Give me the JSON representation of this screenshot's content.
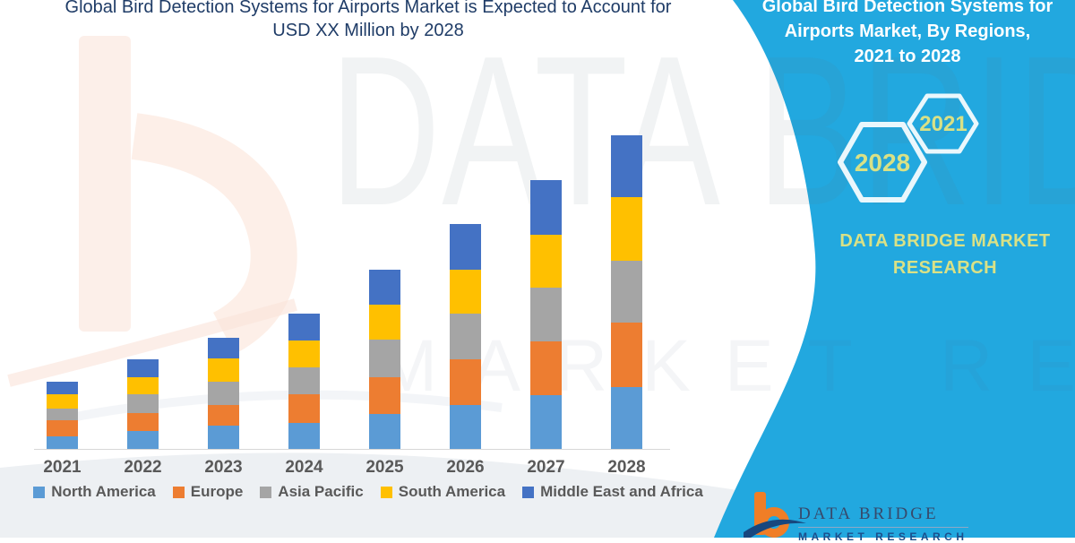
{
  "title": {
    "line1": "Global Bird Detection Systems for Airports Market is Expected to Account for",
    "line2": "USD XX Million by 2028"
  },
  "panel": {
    "heading_lines": [
      "Global Bird Detection Systems for",
      "Airports Market, By Regions,",
      "2021 to 2028"
    ],
    "background_color": "#22A8DF",
    "accent_text_color": "#D9E186"
  },
  "hexagons": [
    {
      "label": "2028"
    },
    {
      "label": "2021"
    }
  ],
  "brand_lines": [
    "DATA BRIDGE MARKET",
    "RESEARCH"
  ],
  "watermark": {
    "line1": "DATA BRIDGE",
    "line2": "MARKET RESEARCH"
  },
  "footer_logo": {
    "title": "DATA BRIDGE",
    "subtitle": "MARKET RESEARCH"
  },
  "chart_data": {
    "type": "bar",
    "stacked": true,
    "title": "Global Bird Detection Systems for Airports Market is Expected to Account for USD XX Million by 2028",
    "xlabel": "",
    "ylabel": "",
    "value_axis_visible": false,
    "unit_note": "values are relative estimates (no numeric axis shown; actual figures masked as 'USD XX Million')",
    "legend_position": "bottom",
    "grid": false,
    "categories": [
      "2021",
      "2022",
      "2023",
      "2024",
      "2025",
      "2026",
      "2027",
      "2028"
    ],
    "series": [
      {
        "name": "North America",
        "color": "#5B9BD5",
        "values": [
          14,
          20,
          26,
          29,
          39,
          49,
          60,
          69
        ]
      },
      {
        "name": "Europe",
        "color": "#ED7D31",
        "values": [
          18,
          20,
          23,
          32,
          41,
          51,
          60,
          72
        ]
      },
      {
        "name": "Asia Pacific",
        "color": "#A5A5A5",
        "values": [
          13,
          21,
          26,
          30,
          42,
          51,
          60,
          69
        ]
      },
      {
        "name": "South America",
        "color": "#FFC000",
        "values": [
          16,
          19,
          26,
          30,
          39,
          49,
          59,
          71
        ]
      },
      {
        "name": "Middle East and Africa",
        "color": "#4472C4",
        "values": [
          14,
          20,
          23,
          30,
          39,
          51,
          61,
          69
        ]
      }
    ],
    "totals": [
      75,
      100,
      124,
      151,
      200,
      251,
      300,
      350
    ]
  }
}
